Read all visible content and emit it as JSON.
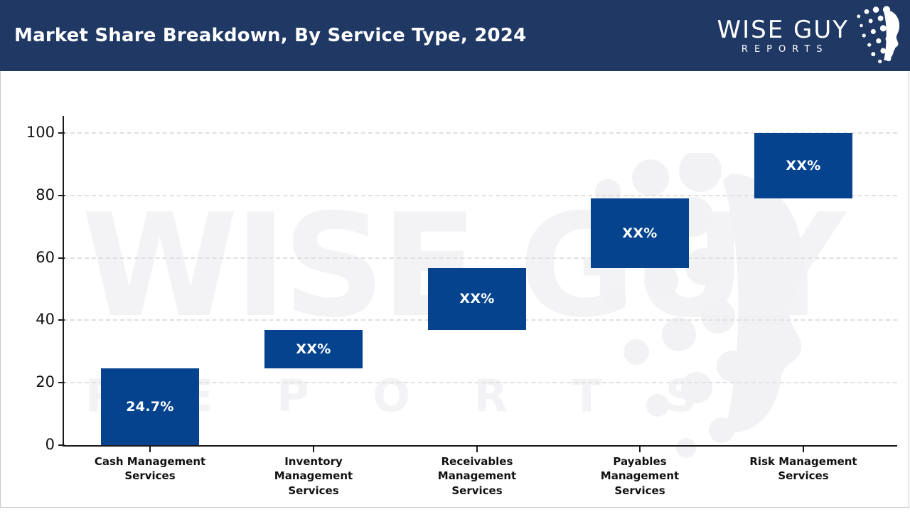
{
  "header": {
    "title": "Market Share Breakdown, By Service Type, 2024",
    "logo": {
      "line1": "WISE GUY",
      "line2": "REPORTS"
    }
  },
  "watermark": {
    "line1": "WISE GUY",
    "line2": "R E P O R T S"
  },
  "colors": {
    "header_bg": "#1f3864",
    "bar": "#05438f",
    "grid": "#e0e0e0",
    "axis": "#1a1a1a",
    "bar_label": "#ffffff",
    "watermark": "#f3f3f5"
  },
  "chart_data": {
    "type": "bar",
    "variant": "waterfall",
    "title": "Market Share Breakdown, By Service Type, 2024",
    "categories": [
      "Cash Management\nServices",
      "Inventory\nManagement\nServices",
      "Receivables\nManagement\nServices",
      "Payables\nManagement\nServices",
      "Risk Management\nServices"
    ],
    "segments": [
      {
        "category": "Cash Management Services",
        "start": 0,
        "end": 24.7,
        "label": "24.7%"
      },
      {
        "category": "Inventory Management Services",
        "start": 24.7,
        "end": 37.0,
        "label": "XX%"
      },
      {
        "category": "Receivables Management Services",
        "start": 37.0,
        "end": 56.8,
        "label": "XX%"
      },
      {
        "category": "Payables Management Services",
        "start": 56.8,
        "end": 79.0,
        "label": "XX%"
      },
      {
        "category": "Risk Management Services",
        "start": 79.0,
        "end": 100.0,
        "label": "XX%"
      }
    ],
    "yticks": [
      0,
      20,
      40,
      60,
      80,
      100
    ],
    "ylim": [
      0,
      105
    ],
    "grid": {
      "horizontal": true,
      "style": "dashed"
    },
    "legend": null
  }
}
